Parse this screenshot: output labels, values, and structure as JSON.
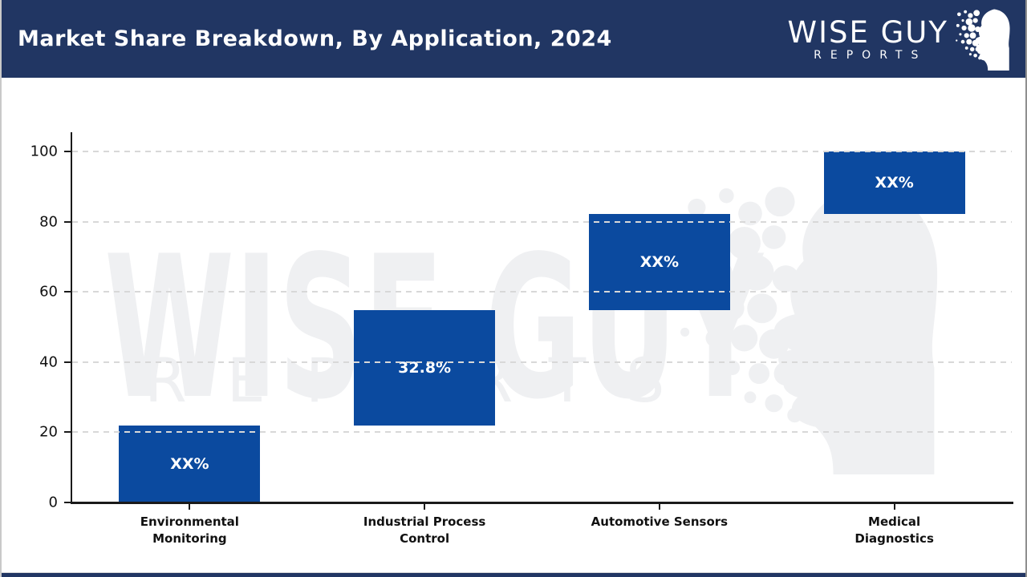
{
  "header": {
    "title": "Market Share Breakdown, By Application, 2024",
    "bg_color": "#213663",
    "logo": {
      "line1": "WISE GUY",
      "line2": "REPORTS"
    }
  },
  "watermark": {
    "line1": "WISE GUY",
    "line2": "REPORTS"
  },
  "chart_data": {
    "type": "bar",
    "variant": "floating-waterfall",
    "title": "Market Share Breakdown, By Application, 2024",
    "xlabel": "",
    "ylabel": "",
    "categories": [
      [
        "Environmental",
        "Monitoring"
      ],
      [
        "Industrial Process",
        "Control"
      ],
      [
        "Automotive Sensors"
      ],
      [
        "Medical",
        "Diagnostics"
      ]
    ],
    "segments": [
      {
        "category": "Environmental Monitoring",
        "start": 0,
        "end": 22,
        "value": 22,
        "label": "XX%"
      },
      {
        "category": "Industrial Process Control",
        "start": 22,
        "end": 54.8,
        "value": 32.8,
        "label": "32.8%"
      },
      {
        "category": "Automotive Sensors",
        "start": 54.8,
        "end": 82.2,
        "value": 27.4,
        "label": "XX%"
      },
      {
        "category": "Medical Diagnostics",
        "start": 82.2,
        "end": 100,
        "value": 17.8,
        "label": "XX%"
      }
    ],
    "yticks": [
      0,
      20,
      40,
      60,
      80,
      100
    ],
    "ylim": [
      0,
      105.5
    ],
    "grid": true,
    "grid_style": "dashed",
    "legend": false,
    "bar_color": "#0b4a9f",
    "bar_label_color": "#ffffff",
    "axis_color": "#1a1a1a",
    "grid_color": "#d8d8d8"
  }
}
